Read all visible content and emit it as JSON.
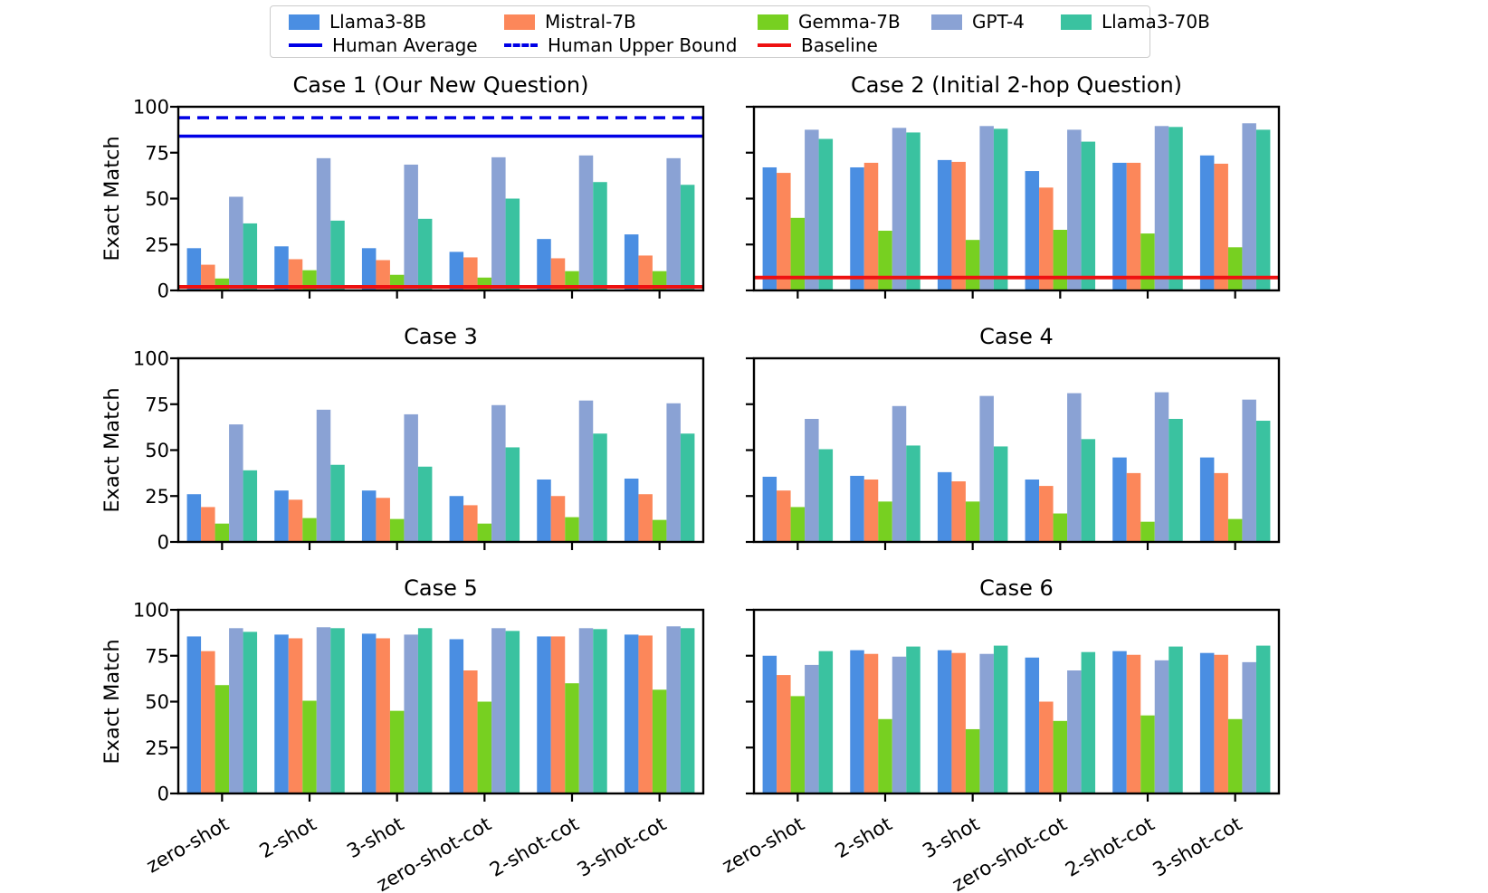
{
  "figure": {
    "ylabel": "Exact Match",
    "yticks": [
      0,
      25,
      50,
      75,
      100
    ],
    "background": "#ffffff"
  },
  "legend": {
    "entries": [
      {
        "label": "Llama3-8B",
        "color": "#4a8ee2",
        "type": "patch",
        "dashed": false
      },
      {
        "label": "Mistral-7B",
        "color": "#fc875a",
        "type": "patch",
        "dashed": false
      },
      {
        "label": "Gemma-7B",
        "color": "#77d021",
        "type": "patch",
        "dashed": false
      },
      {
        "label": "GPT-4",
        "color": "#8aa2d4",
        "type": "patch",
        "dashed": false
      },
      {
        "label": "Llama3-70B",
        "color": "#3ac2a0",
        "type": "patch",
        "dashed": false
      },
      {
        "label": "Human Average",
        "color": "#0000e6",
        "type": "line",
        "dashed": false
      },
      {
        "label": "Human Upper Bound",
        "color": "#0000e6",
        "type": "line",
        "dashed": true
      },
      {
        "label": "Baseline",
        "color": "#ee1111",
        "type": "line",
        "dashed": false
      }
    ]
  },
  "chart_data": [
    {
      "type": "bar",
      "title": "Case 1 (Our New Question)",
      "ylabel": "Exact Match",
      "ylim": [
        0,
        100
      ],
      "show_ytick_labels": true,
      "show_xtick_labels": false,
      "categories": [
        "zero-shot",
        "2-shot",
        "3-shot",
        "zero-shot-cot",
        "2-shot-cot",
        "3-shot-cot"
      ],
      "series": [
        {
          "name": "Llama3-8B",
          "values": [
            23,
            24,
            23,
            21,
            28,
            30.5
          ]
        },
        {
          "name": "Mistral-7B",
          "values": [
            14,
            17,
            16.5,
            18,
            17.5,
            19
          ]
        },
        {
          "name": "Gemma-7B",
          "values": [
            6.5,
            11,
            8.5,
            7,
            10.5,
            10.5
          ]
        },
        {
          "name": "GPT-4",
          "values": [
            51,
            72,
            68.5,
            72.5,
            73.5,
            72
          ]
        },
        {
          "name": "Llama3-70B",
          "values": [
            36.5,
            38,
            39,
            50,
            59,
            57.5
          ]
        }
      ],
      "ref_lines": [
        {
          "label": "Human Upper Bound",
          "value": 94,
          "color": "#0000e6",
          "style": "dashed",
          "width": 3.5
        },
        {
          "label": "Human Average",
          "value": 84,
          "color": "#0000e6",
          "style": "solid",
          "width": 3.5
        },
        {
          "label": "Baseline",
          "value": 2,
          "color": "#ee1111",
          "style": "solid",
          "width": 4
        }
      ]
    },
    {
      "type": "bar",
      "title": "Case 2 (Initial 2-hop Question)",
      "ylabel": "",
      "ylim": [
        0,
        100
      ],
      "show_ytick_labels": false,
      "show_xtick_labels": false,
      "categories": [
        "zero-shot",
        "2-shot",
        "3-shot",
        "zero-shot-cot",
        "2-shot-cot",
        "3-shot-cot"
      ],
      "series": [
        {
          "name": "Llama3-8B",
          "values": [
            67,
            67,
            71,
            65,
            69.5,
            73.5
          ]
        },
        {
          "name": "Mistral-7B",
          "values": [
            64,
            69.5,
            70,
            56,
            69.5,
            69
          ]
        },
        {
          "name": "Gemma-7B",
          "values": [
            39.5,
            32.5,
            27.5,
            33,
            31,
            23.5
          ]
        },
        {
          "name": "GPT-4",
          "values": [
            87.5,
            88.5,
            89.5,
            87.5,
            89.5,
            91
          ]
        },
        {
          "name": "Llama3-70B",
          "values": [
            82.5,
            86,
            88,
            81,
            89,
            87.5
          ]
        }
      ],
      "ref_lines": [
        {
          "label": "Baseline",
          "value": 7,
          "color": "#ee1111",
          "style": "solid",
          "width": 4
        }
      ]
    },
    {
      "type": "bar",
      "title": "Case 3",
      "ylabel": "Exact Match",
      "ylim": [
        0,
        100
      ],
      "show_ytick_labels": true,
      "show_xtick_labels": false,
      "categories": [
        "zero-shot",
        "2-shot",
        "3-shot",
        "zero-shot-cot",
        "2-shot-cot",
        "3-shot-cot"
      ],
      "series": [
        {
          "name": "Llama3-8B",
          "values": [
            26,
            28,
            28,
            25,
            34,
            34.5
          ]
        },
        {
          "name": "Mistral-7B",
          "values": [
            19,
            23,
            24,
            20,
            25,
            26
          ]
        },
        {
          "name": "Gemma-7B",
          "values": [
            10,
            13,
            12.5,
            10,
            13.5,
            12
          ]
        },
        {
          "name": "GPT-4",
          "values": [
            64,
            72,
            69.5,
            74.5,
            77,
            75.5
          ]
        },
        {
          "name": "Llama3-70B",
          "values": [
            39,
            42,
            41,
            51.5,
            59,
            59
          ]
        }
      ],
      "ref_lines": []
    },
    {
      "type": "bar",
      "title": "Case 4",
      "ylabel": "",
      "ylim": [
        0,
        100
      ],
      "show_ytick_labels": false,
      "show_xtick_labels": false,
      "categories": [
        "zero-shot",
        "2-shot",
        "3-shot",
        "zero-shot-cot",
        "2-shot-cot",
        "3-shot-cot"
      ],
      "series": [
        {
          "name": "Llama3-8B",
          "values": [
            35.5,
            36,
            38,
            34,
            46,
            46
          ]
        },
        {
          "name": "Mistral-7B",
          "values": [
            28,
            34,
            33,
            30.5,
            37.5,
            37.5
          ]
        },
        {
          "name": "Gemma-7B",
          "values": [
            19,
            22,
            22,
            15.5,
            11,
            12.5
          ]
        },
        {
          "name": "GPT-4",
          "values": [
            67,
            74,
            79.5,
            81,
            81.5,
            77.5
          ]
        },
        {
          "name": "Llama3-70B",
          "values": [
            50.5,
            52.5,
            52,
            56,
            67,
            66
          ]
        }
      ],
      "ref_lines": []
    },
    {
      "type": "bar",
      "title": "Case 5",
      "ylabel": "Exact Match",
      "ylim": [
        0,
        100
      ],
      "show_ytick_labels": true,
      "show_xtick_labels": true,
      "categories": [
        "zero-shot",
        "2-shot",
        "3-shot",
        "zero-shot-cot",
        "2-shot-cot",
        "3-shot-cot"
      ],
      "series": [
        {
          "name": "Llama3-8B",
          "values": [
            85.5,
            86.5,
            87,
            84,
            85.5,
            86.5
          ]
        },
        {
          "name": "Mistral-7B",
          "values": [
            77.5,
            84.5,
            84.5,
            67,
            85.5,
            86
          ]
        },
        {
          "name": "Gemma-7B",
          "values": [
            59,
            50.5,
            45,
            50,
            60,
            56.5
          ]
        },
        {
          "name": "GPT-4",
          "values": [
            90,
            90.5,
            86.5,
            90,
            90,
            91
          ]
        },
        {
          "name": "Llama3-70B",
          "values": [
            88,
            90,
            90,
            88.5,
            89.5,
            90
          ]
        }
      ],
      "ref_lines": []
    },
    {
      "type": "bar",
      "title": "Case 6",
      "ylabel": "",
      "ylim": [
        0,
        100
      ],
      "show_ytick_labels": false,
      "show_xtick_labels": true,
      "categories": [
        "zero-shot",
        "2-shot",
        "3-shot",
        "zero-shot-cot",
        "2-shot-cot",
        "3-shot-cot"
      ],
      "series": [
        {
          "name": "Llama3-8B",
          "values": [
            75,
            78,
            78,
            74,
            77.5,
            76.5
          ]
        },
        {
          "name": "Mistral-7B",
          "values": [
            64.5,
            76,
            76.5,
            50,
            75.5,
            75.5
          ]
        },
        {
          "name": "Gemma-7B",
          "values": [
            53,
            40.5,
            35,
            39.5,
            42.5,
            40.5
          ]
        },
        {
          "name": "GPT-4",
          "values": [
            70,
            74.5,
            76,
            67,
            72.5,
            71.5
          ]
        },
        {
          "name": "Llama3-70B",
          "values": [
            77.5,
            80,
            80.5,
            77,
            80,
            80.5
          ]
        }
      ],
      "ref_lines": []
    }
  ]
}
